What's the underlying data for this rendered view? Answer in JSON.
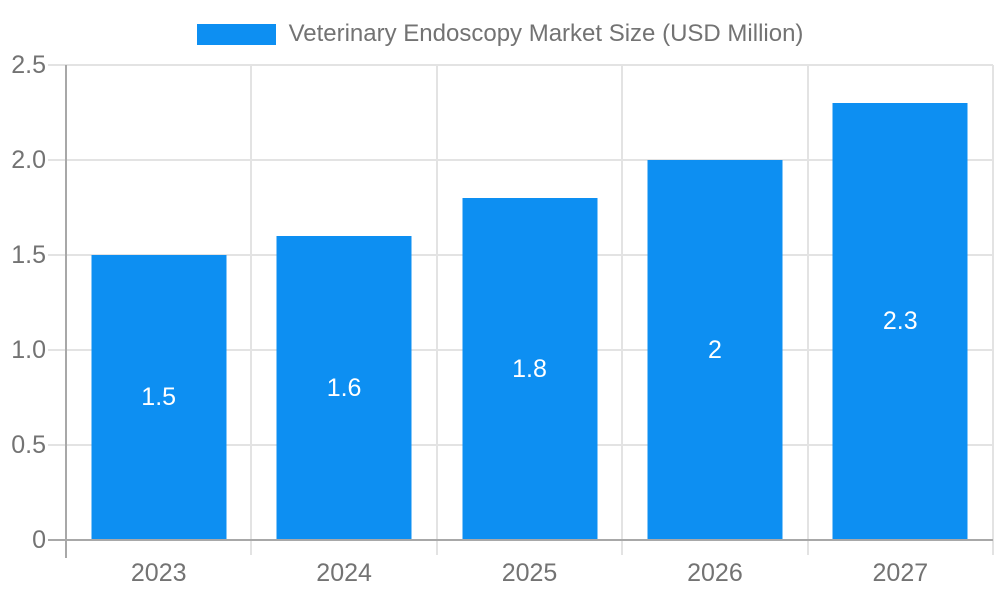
{
  "chart_data": {
    "type": "bar",
    "title": "Veterinary Endoscopy Market Size (USD Million)",
    "categories": [
      "2023",
      "2024",
      "2025",
      "2026",
      "2027"
    ],
    "values": [
      1.5,
      1.6,
      1.8,
      2,
      2.3
    ],
    "bar_labels": [
      "1.5",
      "1.6",
      "1.8",
      "2",
      "2.3"
    ],
    "xlabel": "",
    "ylabel": "",
    "ylim": [
      0,
      2.5
    ],
    "y_tick_values": [
      0,
      0.5,
      1,
      1.5,
      2,
      2.5
    ],
    "y_tick_labels": [
      "0",
      "0.5",
      "1.0",
      "1.5",
      "2.0",
      "2.5"
    ],
    "grid": "on",
    "legend_position": "top-center",
    "bar_label_position": "inside-center",
    "colors": {
      "bar": "#0d8ff2",
      "bar_label_text": "#ffffff",
      "axis_text": "#737373",
      "grid_line": "#e3e3e3",
      "axis_line": "#a8a8a8",
      "background": "#ffffff"
    }
  }
}
